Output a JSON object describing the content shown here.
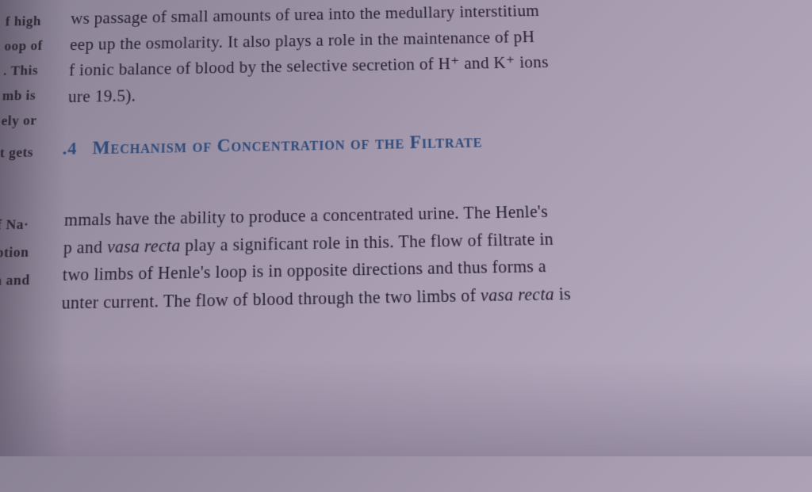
{
  "margin": {
    "line1": "f high",
    "line2": "oop of",
    "line3": ". This",
    "line4": "mb is",
    "line5": "ely or",
    "line6": "t gets",
    "line7": "f Na·",
    "line8": "ption",
    "line9": "a and"
  },
  "paragraph1": {
    "line1": "ws passage of small amounts of urea into the medullary interstitium",
    "line2": "eep up the osmolarity. It also plays a role in the maintenance of pH",
    "line3": "f ionic balance of blood by the selective secretion of H⁺ and K⁺ ions",
    "line4": "ure 19.5)."
  },
  "section": {
    "number": ".4",
    "title": "Mechanism of Concentration of the Filtrate"
  },
  "paragraph2": {
    "line1": "mmals have the ability to produce a concentrated urine. The Henle's",
    "line2_pre": "p and ",
    "line2_italic": "vasa recta",
    "line2_post": " play a significant role in this. The flow of filtrate in",
    "line3": " two limbs of Henle's loop is in opposite directions and thus forms a",
    "line4_pre": "unter current. The flow of blood through the two limbs of ",
    "line4_italic": "vasa recta",
    "line4_post": " is"
  },
  "styling": {
    "heading_color": "#2d4a7a",
    "body_text_color": "#252030",
    "background_gradient_start": "#8a8295",
    "background_gradient_end": "#b8aec2",
    "body_fontsize": 21,
    "heading_fontsize": 23,
    "margin_fontsize": 17
  }
}
